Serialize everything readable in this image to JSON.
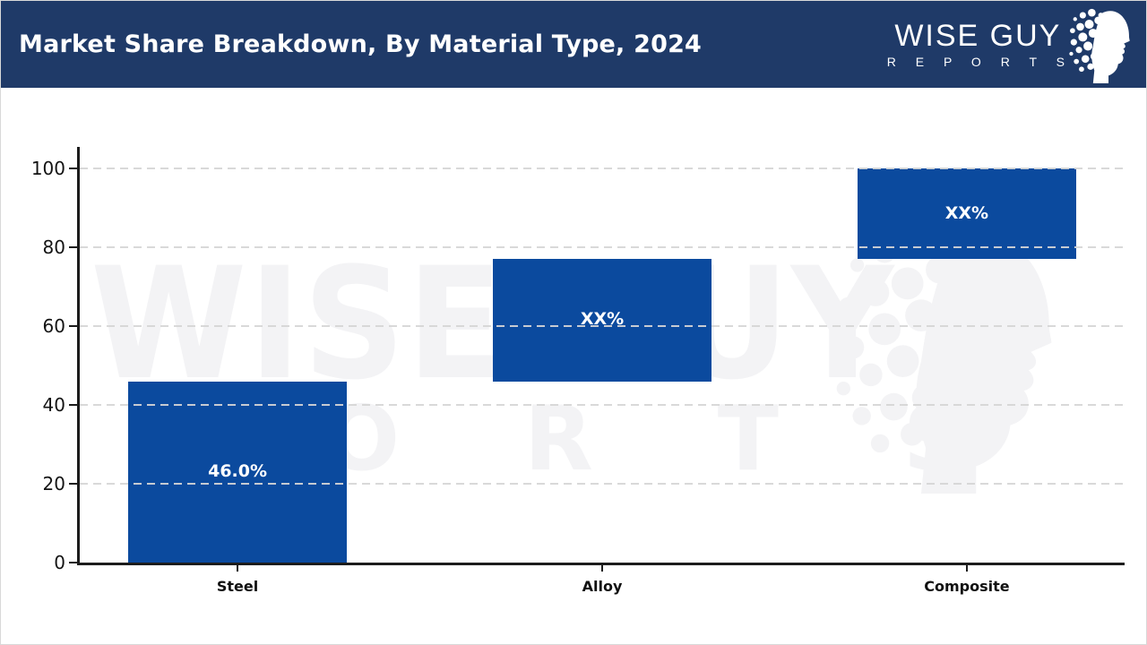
{
  "header": {
    "title": "Market Share Breakdown, By Material Type, 2024",
    "background_color": "#1f3a68",
    "logo": {
      "line1": "WISE GUY",
      "line2": "R E P O R T S"
    }
  },
  "watermark": {
    "line1": "WISE GUY",
    "line2": "P O R T S"
  },
  "chart_data": {
    "type": "bar",
    "variant": "waterfall",
    "title": "Market Share Breakdown, By Material Type, 2024",
    "categories": [
      "Steel",
      "Alloy",
      "Composite"
    ],
    "bars": [
      {
        "category": "Steel",
        "start": 0,
        "end": 46,
        "label": "46.0%"
      },
      {
        "category": "Alloy",
        "start": 46,
        "end": 77,
        "label": "XX%"
      },
      {
        "category": "Composite",
        "start": 77,
        "end": 100,
        "label": "XX%"
      }
    ],
    "xlabel": "",
    "ylabel": "",
    "ylim": [
      0,
      100
    ],
    "yticks": [
      0,
      20,
      40,
      60,
      80,
      100
    ],
    "grid": "dashed horizontal, drawn over bars",
    "legend": "none",
    "bar_color": "#0b4a9e",
    "bar_label_color": "#ffffff",
    "grid_color": "#d6d6d6",
    "axis_color": "#1c1c1c"
  }
}
